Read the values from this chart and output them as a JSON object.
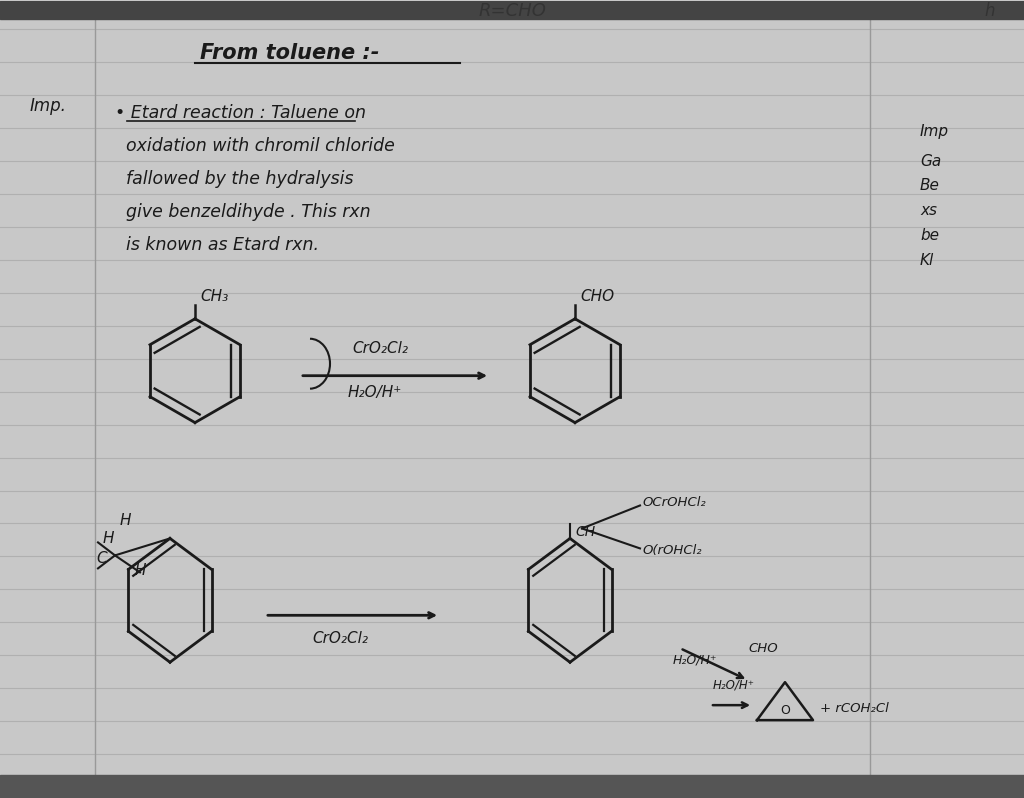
{
  "paper_color": "#c8c8c8",
  "ink_color": "#1a1a1a",
  "line_color": "#b0b0b0",
  "margin_line_color": "#aaaaaa",
  "top_bar_color": "#555555",
  "heading": "From toluene :-",
  "imp_label": "Imp.",
  "bullet_lines": [
    "• Etard reaction : Taluene on",
    "  oxidation with chromil chloride",
    "  fallowed by the hydralysis",
    "  give benzeldihyde . This rxn",
    "  is known as Etard rxn."
  ],
  "reagent1_top": "CrO₂Cl₂",
  "reagent1_bot": "H₂O/H⁺",
  "reagent2": "CrO₂Cl₂",
  "ch3": "CH₃",
  "cho": "CHO",
  "side_right": [
    "Imp",
    "Ga",
    "Be",
    "xs",
    "be",
    "Kl"
  ],
  "rcho_top": "R=CHO",
  "h_top": "h"
}
